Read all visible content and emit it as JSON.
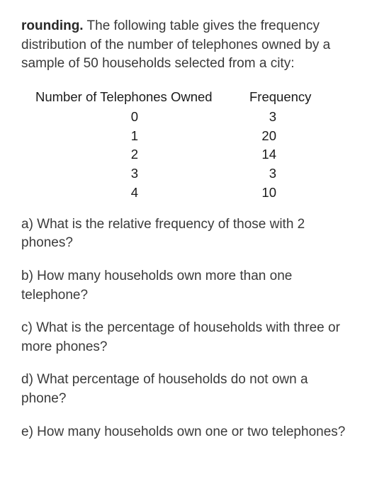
{
  "intro": {
    "bold_lead": "rounding.",
    "text": " The following table gives the frequency distribution of the number of telephones owned by a sample of 50 households selected from a city:"
  },
  "table": {
    "type": "table",
    "header_col1": "Number of Telephones Owned",
    "header_col2": "Frequency",
    "rows": [
      {
        "phones": "0",
        "freq": "3"
      },
      {
        "phones": "1",
        "freq": "20"
      },
      {
        "phones": "2",
        "freq": "14"
      },
      {
        "phones": "3",
        "freq": "3"
      },
      {
        "phones": "4",
        "freq": "10"
      }
    ],
    "header_fontsize": 18.5,
    "body_fontsize": 18.5,
    "text_color": "#1a1a1a",
    "background_color": "#ffffff"
  },
  "questions": {
    "a": "a) What is the relative frequency of those with 2 phones?",
    "b": "b) How many households own more than one telephone?",
    "c": "c) What is the percentage of households with three or more phones?",
    "d": "d) What percentage of households do not own a phone?",
    "e": "e) How many households own one or two telephones?"
  },
  "style": {
    "body_text_color": "#3a3a3a",
    "body_fontsize": 19,
    "page_background": "#ffffff"
  }
}
